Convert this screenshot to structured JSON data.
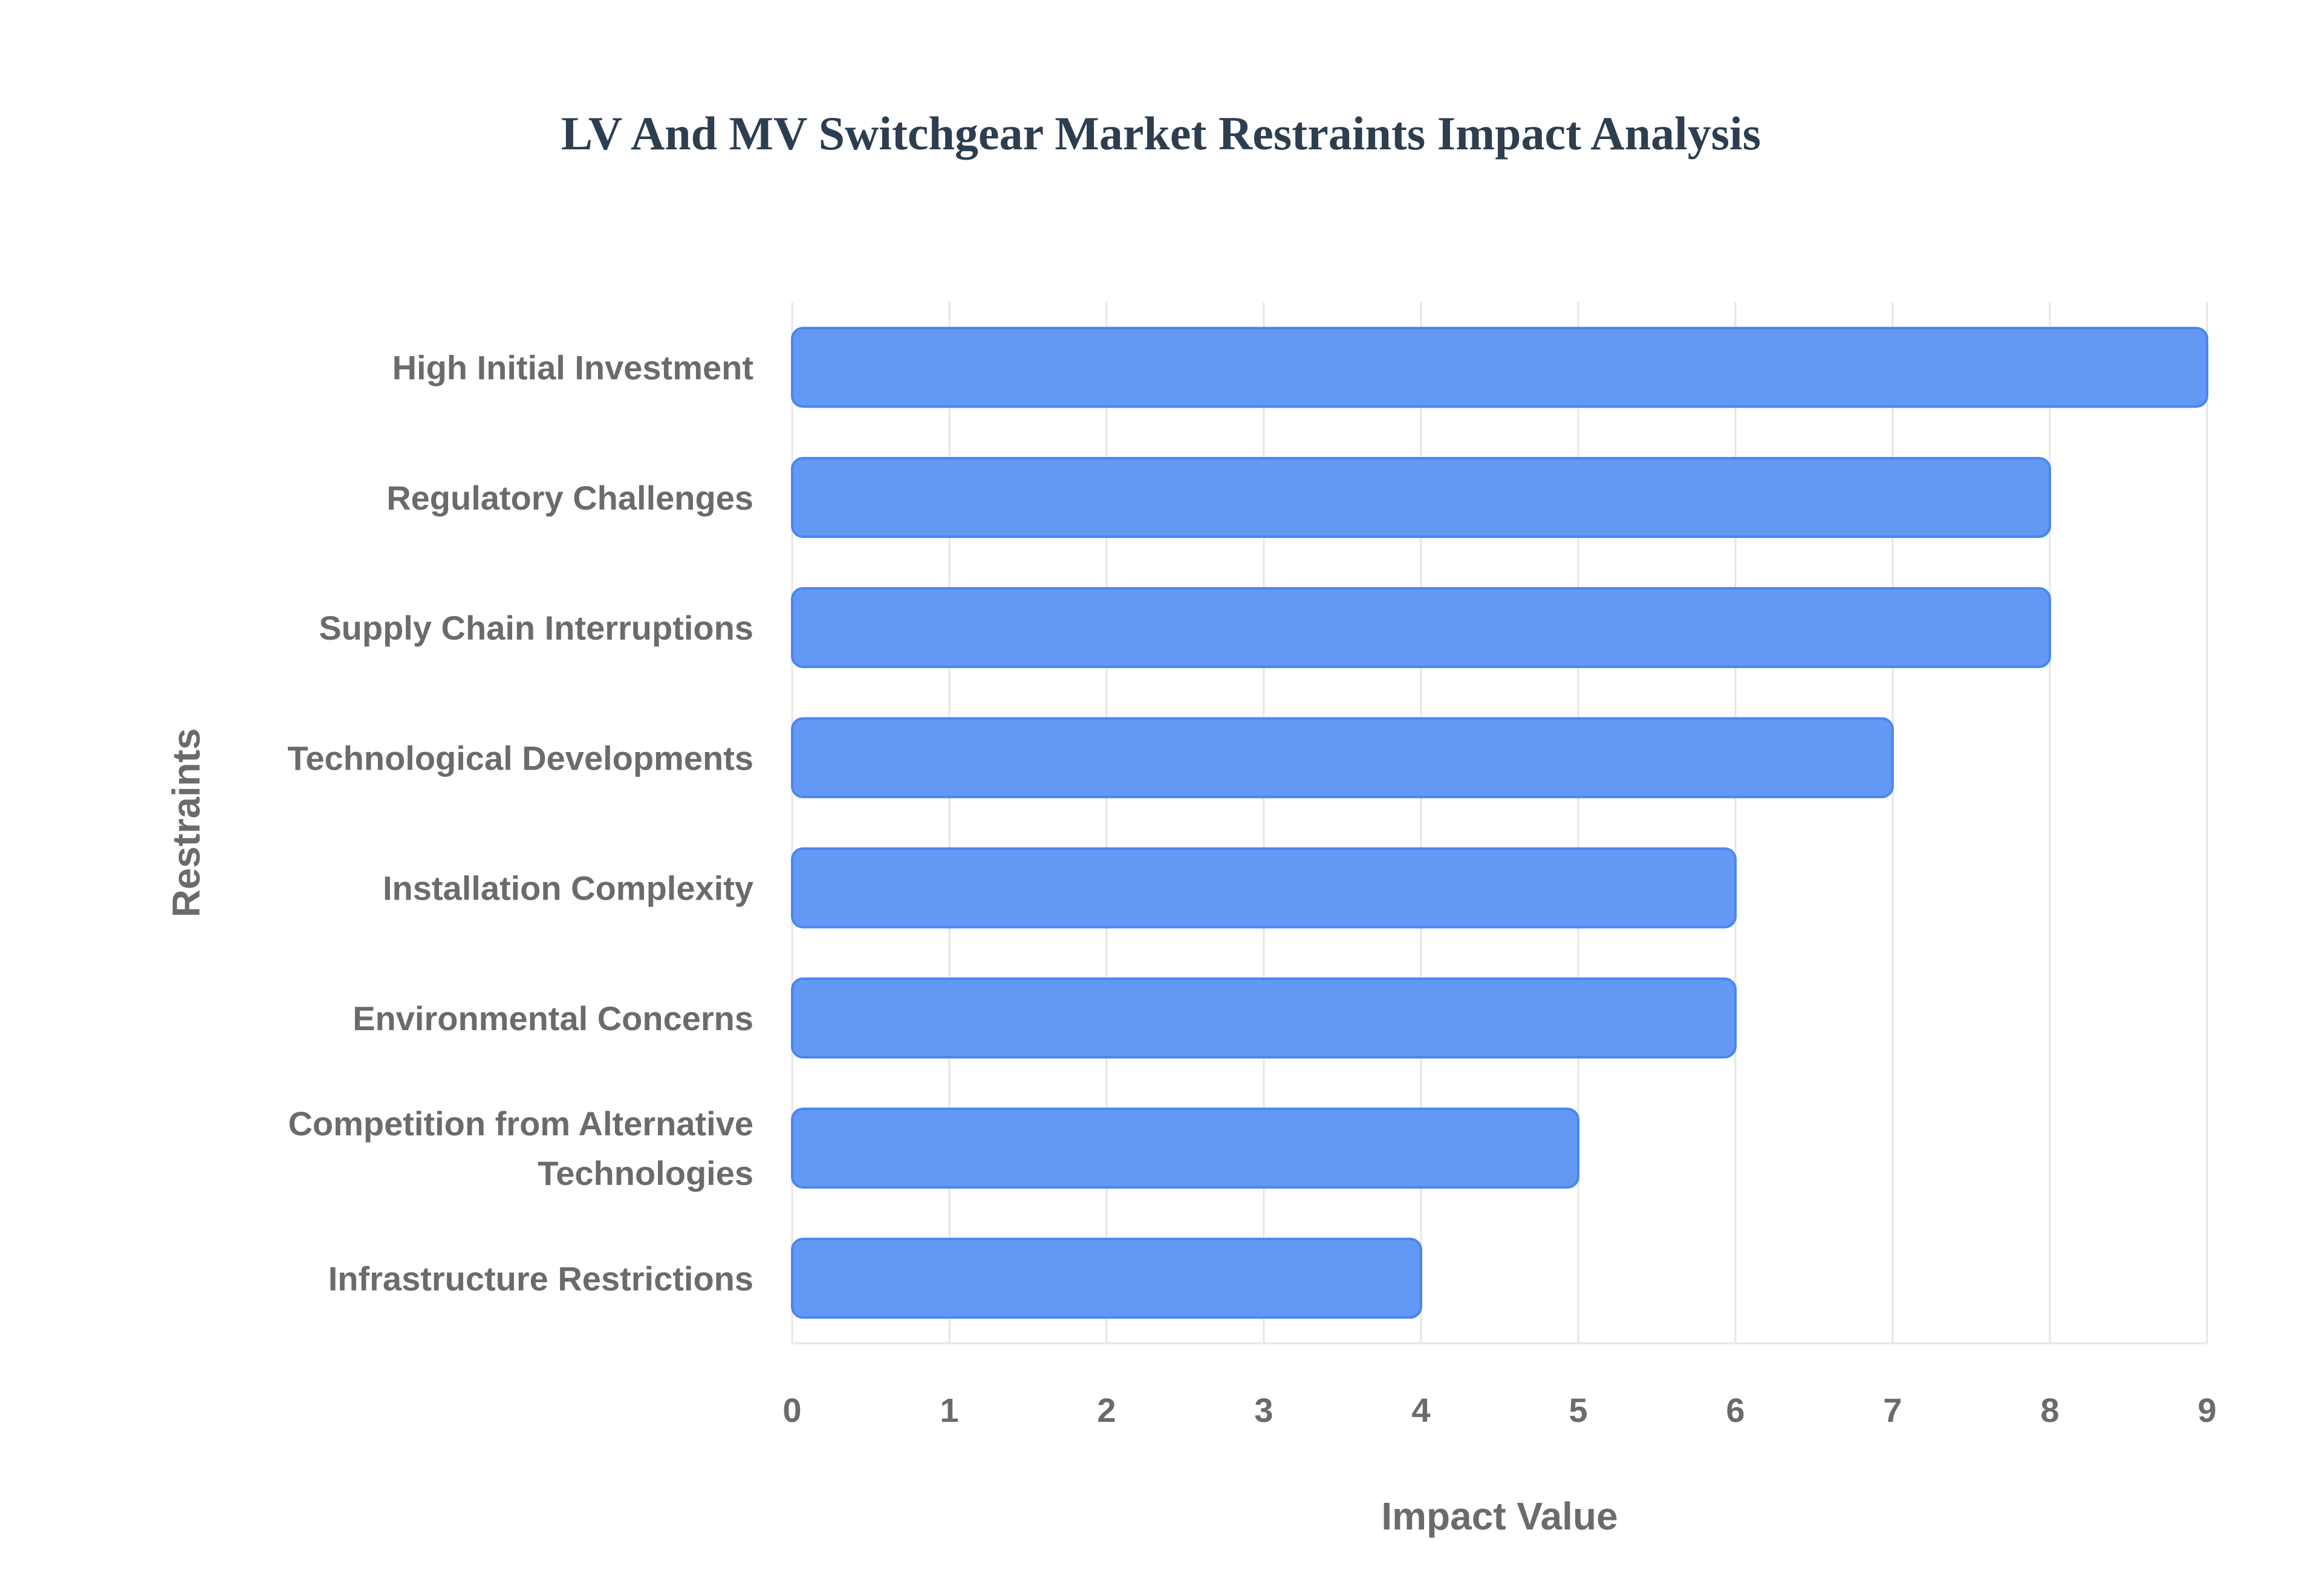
{
  "chart_data": {
    "type": "bar",
    "orientation": "horizontal",
    "title": "LV And MV Switchgear Market Restraints Impact Analysis",
    "xlabel": "Impact Value",
    "ylabel": "Restraints",
    "categories": [
      "High Initial Investment",
      "Regulatory Challenges",
      "Supply Chain Interruptions",
      "Technological Developments",
      "Installation Complexity",
      "Environmental Concerns",
      "Competition from Alternative Technologies",
      "Infrastructure Restrictions"
    ],
    "category_lines": [
      [
        "High Initial Investment"
      ],
      [
        "Regulatory Challenges"
      ],
      [
        "Supply Chain Interruptions"
      ],
      [
        "Technological Developments"
      ],
      [
        "Installation Complexity"
      ],
      [
        "Environmental Concerns"
      ],
      [
        "Competition from Alternative",
        "Technologies"
      ],
      [
        "Infrastructure Restrictions"
      ]
    ],
    "values": [
      9,
      8,
      8,
      7,
      6,
      6,
      5,
      4
    ],
    "xlim": [
      0,
      9
    ],
    "xticks": [
      "0",
      "1",
      "2",
      "3",
      "4",
      "5",
      "6",
      "7",
      "8",
      "9"
    ],
    "grid": true,
    "colors": {
      "bar_fill": "#6399f5",
      "bar_stroke": "#4a86ee",
      "grid": "#e6e6e6"
    }
  }
}
